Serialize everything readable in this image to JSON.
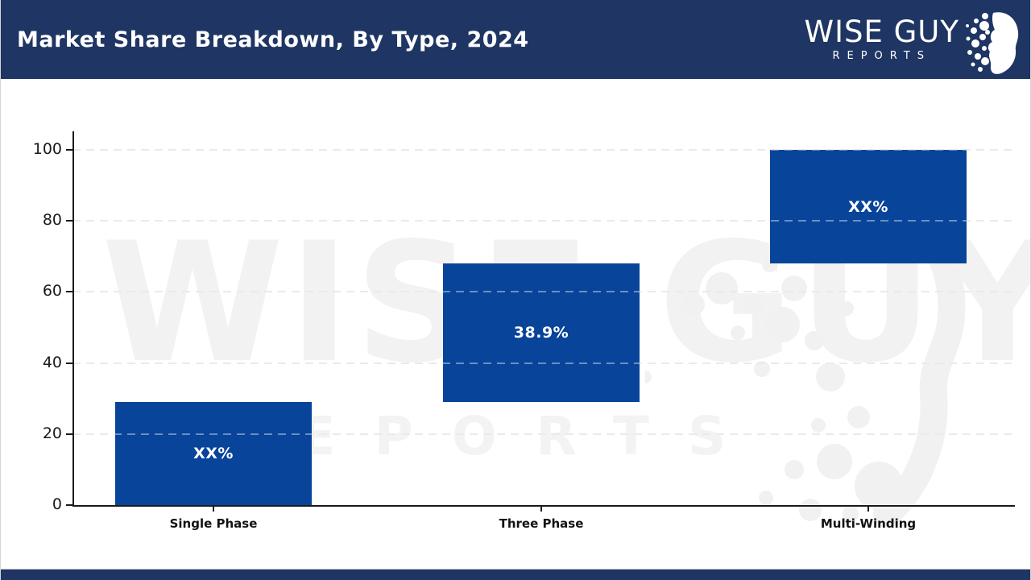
{
  "header": {
    "title": "Market Share Breakdown, By Type, 2024",
    "logo": {
      "line1": "WISE GUY",
      "line2": "REPORTS"
    }
  },
  "watermark": {
    "line1": "WISE GUY",
    "line2": "REPORTS"
  },
  "colors": {
    "header_bg": "#1f3563",
    "footer_bg": "#1f3563",
    "bar": "#08449a",
    "grid": "#dcdcdc",
    "axis": "#1a1a1a",
    "bar_label": "#ffffff",
    "watermark": "#f2f2f2",
    "title_text": "#ffffff"
  },
  "chart_data": {
    "type": "bar",
    "subtype": "waterfall",
    "title": "Market Share Breakdown, By Type, 2024",
    "categories": [
      "Single Phase",
      "Three Phase",
      "Multi-Winding"
    ],
    "series": [
      {
        "name": "Market Share (%)",
        "segments": [
          {
            "category": "Single Phase",
            "base": 0,
            "value": 29.1,
            "label": "XX%"
          },
          {
            "category": "Three Phase",
            "base": 29.1,
            "value": 38.9,
            "label": "38.9%"
          },
          {
            "category": "Multi-Winding",
            "base": 68.0,
            "value": 32.0,
            "label": "XX%"
          }
        ]
      }
    ],
    "xlabel": "",
    "ylabel": "",
    "ylim": [
      0,
      105
    ],
    "yticks": [
      0,
      20,
      40,
      60,
      80,
      100
    ],
    "grid": "horizontal-dashed",
    "legend": "none"
  }
}
